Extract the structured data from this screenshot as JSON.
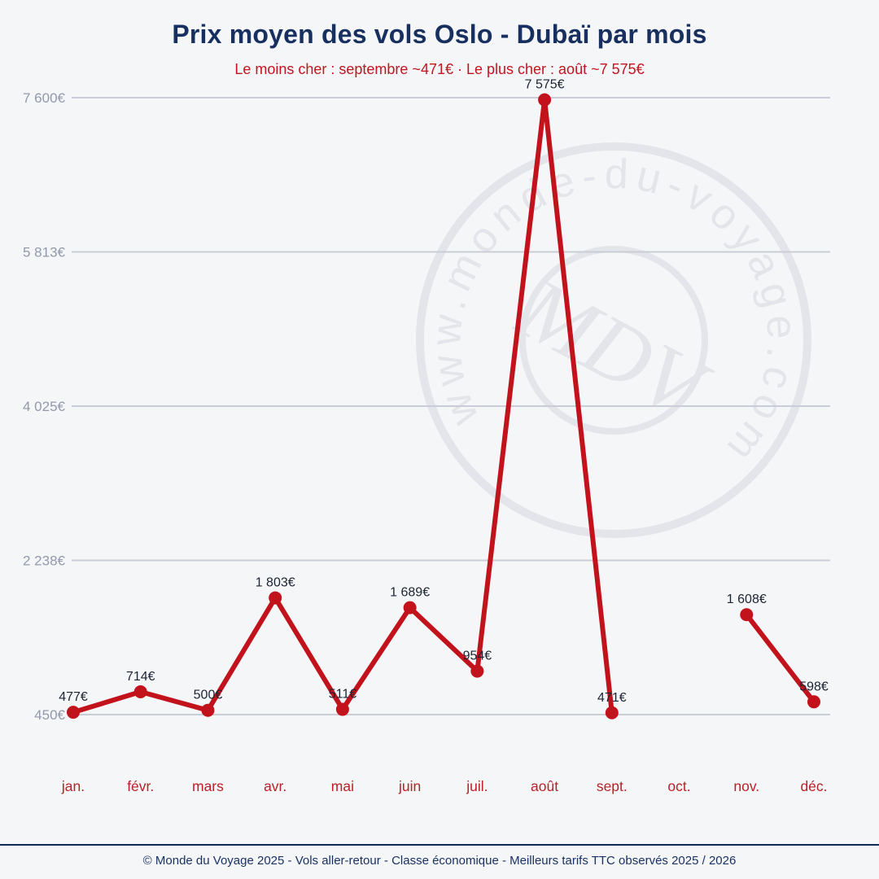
{
  "header": {
    "title": "Prix moyen des vols Oslo - Dubaï par mois",
    "subtitle": "Le moins cher : septembre ~471€ · Le plus cher : août ~7 575€"
  },
  "chart_data": {
    "type": "line",
    "title": "Prix moyen des vols Oslo - Dubaï par mois",
    "categories": [
      "jan.",
      "févr.",
      "mars",
      "avr.",
      "mai",
      "juin",
      "juil.",
      "août",
      "sept.",
      "oct.",
      "nov.",
      "déc."
    ],
    "values": [
      477,
      714,
      500,
      1803,
      511,
      1689,
      954,
      7575,
      471,
      null,
      1608,
      598
    ],
    "point_labels": [
      "477€",
      "714€",
      "500€",
      "1 803€",
      "511€",
      "1 689€",
      "954€",
      "7 575€",
      "471€",
      null,
      "1 608€",
      "598€"
    ],
    "y_ticks": [
      {
        "value": 7600,
        "label": "7 600€"
      },
      {
        "value": 5813,
        "label": "5 813€"
      },
      {
        "value": 4025,
        "label": "4 025€"
      },
      {
        "value": 2238,
        "label": "2 238€"
      },
      {
        "value": 450,
        "label": "450€"
      }
    ],
    "ylim": [
      450,
      7600
    ],
    "grid": true,
    "legend": false,
    "line_color": "#c2121c",
    "grid_color": "#c9cdd7",
    "ytick_color": "#9199ab",
    "month_label_color": "#b92027",
    "value_label_color": "#1b2433"
  },
  "watermark": {
    "ring_text": "www.monde-du-voyage.com",
    "center_text": "MDV",
    "color": "#e4e5ea"
  },
  "footer": {
    "text": "© Monde du Voyage 2025 - Vols aller-retour - Classe économique - Meilleurs tarifs TTC observés 2025 / 2026"
  }
}
